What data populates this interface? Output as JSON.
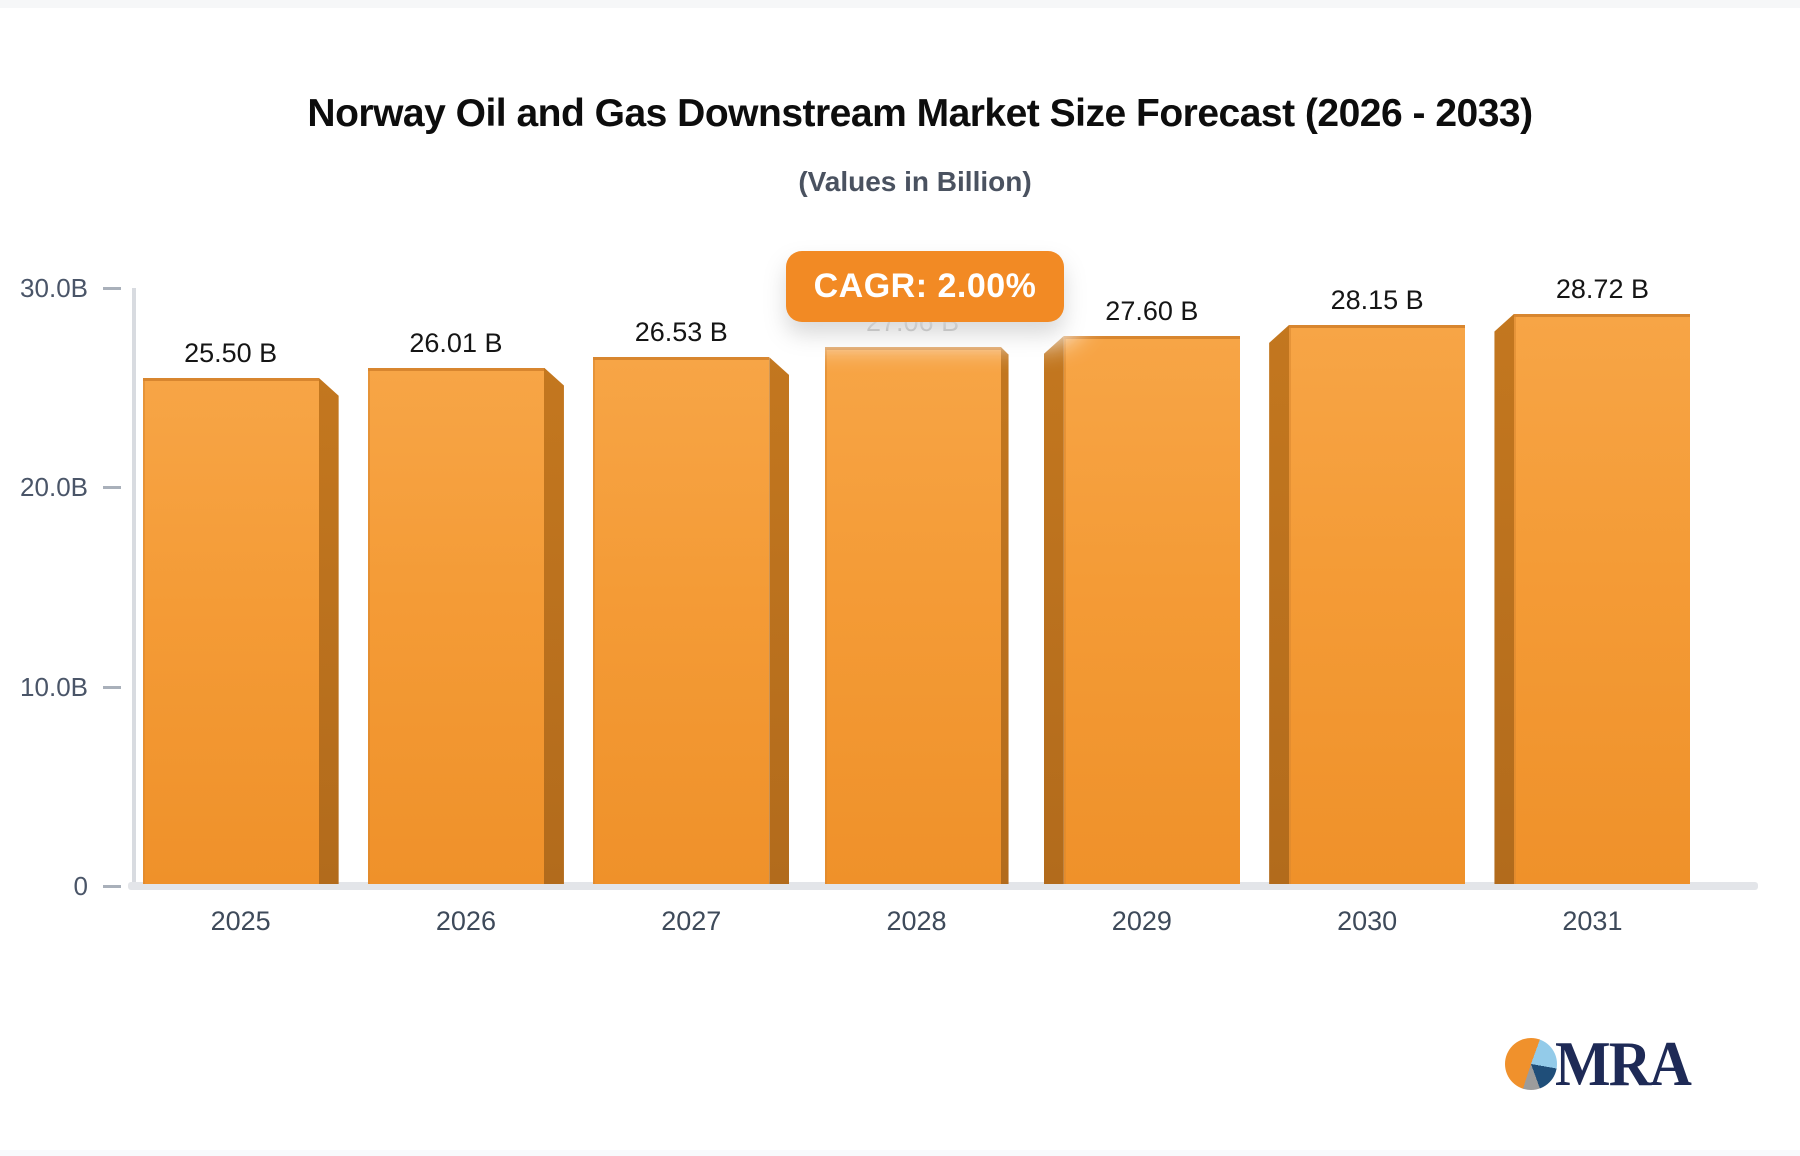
{
  "header": {
    "title": "Norway Oil and Gas Downstream Market Size Forecast (2026 - 2033)",
    "subtitle": "(Values in Billion)"
  },
  "cagr": {
    "label": "CAGR: 2.00%"
  },
  "yaxis": {
    "ticks": [
      {
        "label": "30.0B",
        "value": 30
      },
      {
        "label": "20.0B",
        "value": 20
      },
      {
        "label": "10.0B",
        "value": 10
      },
      {
        "label": "0",
        "value": 0
      }
    ]
  },
  "bars": [
    {
      "year": "2025",
      "label": "25.50 B",
      "value": 25.5
    },
    {
      "year": "2026",
      "label": "26.01 B",
      "value": 26.01
    },
    {
      "year": "2027",
      "label": "26.53 B",
      "value": 26.53
    },
    {
      "year": "2028",
      "label": "27.06 B",
      "value": 27.06
    },
    {
      "year": "2029",
      "label": "27.60 B",
      "value": 27.6
    },
    {
      "year": "2030",
      "label": "28.15 B",
      "value": 28.15
    },
    {
      "year": "2031",
      "label": "28.72 B",
      "value": 28.72
    }
  ],
  "logo": {
    "text": "MRA"
  },
  "colors": {
    "bar_face": "#f49b36",
    "bar_side": "#b96f1e",
    "badge": "#f28a24",
    "axis_text": "#4a5568",
    "logo_navy": "#1e2a56",
    "pie_orange": "#f0912c",
    "pie_blue": "#93cbe9",
    "pie_dark_blue": "#1f4e79",
    "pie_gray": "#9c9c9c"
  },
  "chart_data": {
    "type": "bar",
    "title": "Norway Oil and Gas Downstream Market Size Forecast (2026 - 2033)",
    "subtitle": "(Values in Billion)",
    "categories": [
      "2025",
      "2026",
      "2027",
      "2028",
      "2029",
      "2030",
      "2031"
    ],
    "values": [
      25.5,
      26.01,
      26.53,
      27.06,
      27.6,
      28.15,
      28.72
    ],
    "data_labels": [
      "25.50 B",
      "26.01 B",
      "26.53 B",
      "27.06 B",
      "27.60 B",
      "28.15 B",
      "28.72 B"
    ],
    "unit": "Billion",
    "xlabel": "",
    "ylabel": "",
    "ylim": [
      0,
      30
    ],
    "ytick_labels": [
      "0",
      "10.0B",
      "20.0B",
      "30.0B"
    ],
    "cagr": "2.00%",
    "legend": "none",
    "grid": "off",
    "bar_color": "orange-3d"
  }
}
